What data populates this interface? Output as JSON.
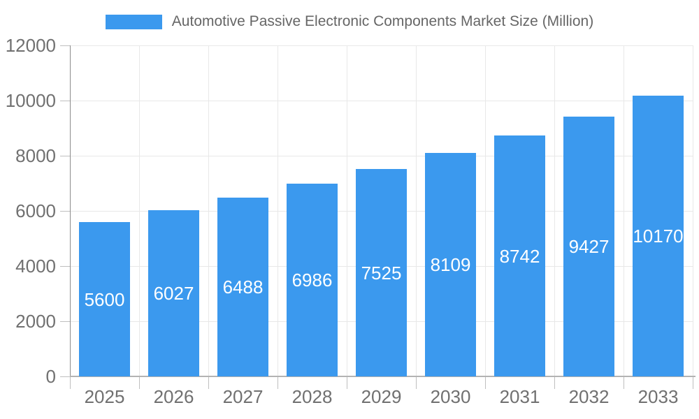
{
  "chart_data": {
    "type": "bar",
    "title": "",
    "legend": "Automotive Passive Electronic Components Market Size (Million)",
    "legend_position": "top-center",
    "categories": [
      "2025",
      "2026",
      "2027",
      "2028",
      "2029",
      "2030",
      "2031",
      "2032",
      "2033"
    ],
    "values": [
      5600,
      6027,
      6488,
      6986,
      7525,
      8109,
      8742,
      9427,
      10170
    ],
    "xlabel": "",
    "ylabel": "",
    "ylim": [
      0,
      12000
    ],
    "yticks": [
      0,
      2000,
      4000,
      6000,
      8000,
      10000,
      12000
    ],
    "grid": true,
    "value_labels_inside_bars": true,
    "colors": {
      "bar": "#3B99EE",
      "value_label": "#FFFFFF",
      "axis_label": "#707070",
      "legend_text": "#666666",
      "gridline": "#E8E8E8",
      "y_axis_line": "#8C8C8C",
      "x_axis_line": "#B3B3B3",
      "tick": "#BFBFBF",
      "background": "#FFFFFF"
    }
  }
}
